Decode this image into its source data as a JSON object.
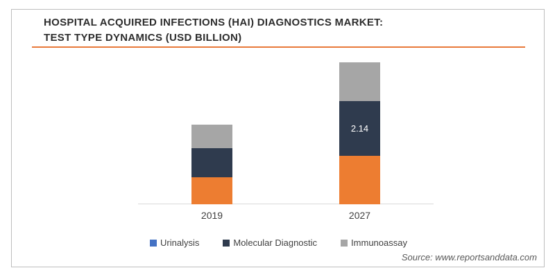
{
  "card": {
    "title_line1": "HOSPITAL ACQUIRED INFECTIONS (HAI) DIAGNOSTICS MARKET:",
    "title_line2": "TEST TYPE DYNAMICS (USD BILLION)",
    "source": "Source: www.reportsanddata.com"
  },
  "colors": {
    "accent_rule": "#e8793a",
    "card_border": "#bdbdbd",
    "axis_line": "#d9d9d9",
    "data_label_text": "#ffffff"
  },
  "chart_data": {
    "type": "bar",
    "stacked": true,
    "title": "HOSPITAL ACQUIRED INFECTIONS (HAI) DIAGNOSTICS MARKET: TEST TYPE DYNAMICS (USD BILLION)",
    "units": "USD Billion",
    "categories": [
      "2019",
      "2027"
    ],
    "series": [
      {
        "name": "Urinalysis",
        "values": [
          1.05,
          1.9
        ],
        "bar_color": "#ed7d31",
        "legend_color": "#4472c4"
      },
      {
        "name": "Molecular Diagnostic",
        "values": [
          1.15,
          2.14
        ],
        "bar_color": "#2f3b4e",
        "legend_color": "#2f3b4e"
      },
      {
        "name": "Immunoassay",
        "values": [
          0.9,
          1.5
        ],
        "bar_color": "#a6a6a6",
        "legend_color": "#a6a6a6"
      }
    ],
    "data_labels": [
      {
        "category": "2027",
        "series": "Molecular Diagnostic",
        "text": "2.14"
      }
    ],
    "legend_position": "bottom",
    "grid": false,
    "y_axis_shown": false
  }
}
